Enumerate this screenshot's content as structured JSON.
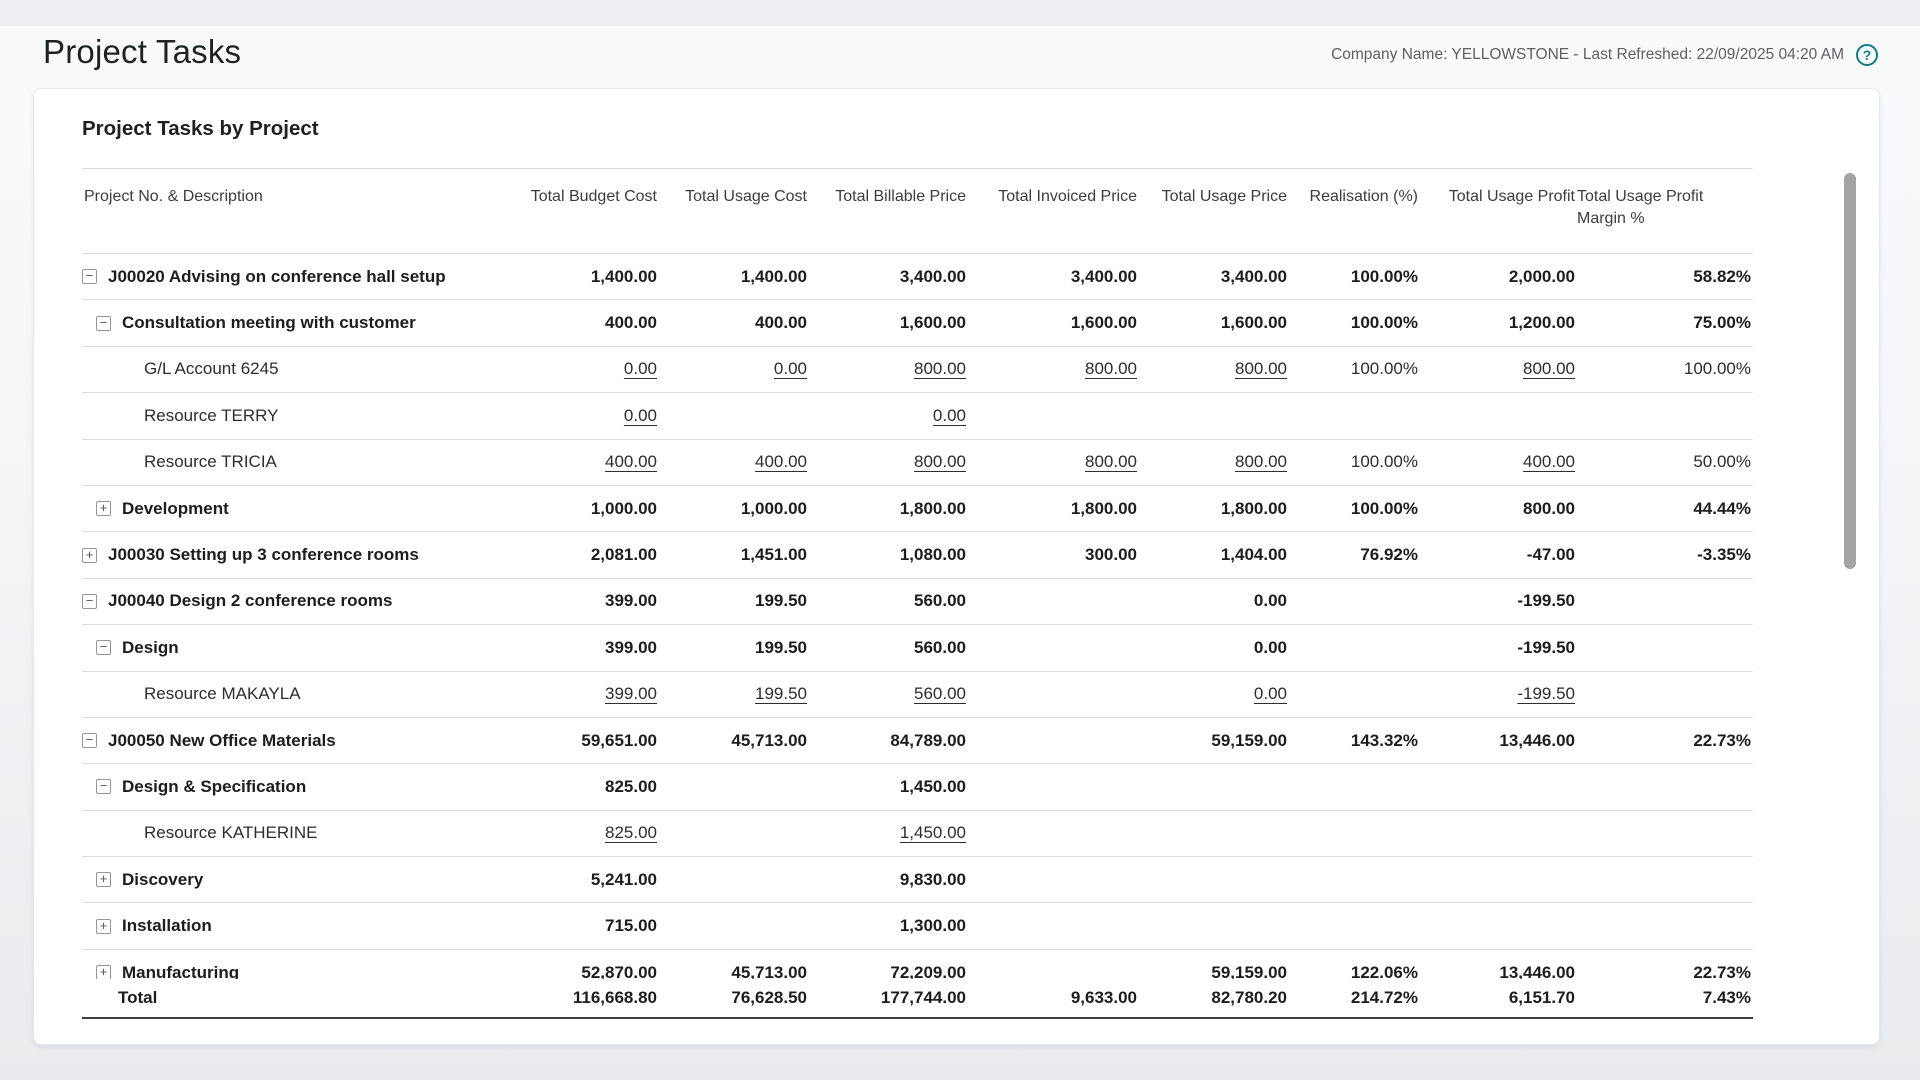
{
  "page": {
    "title": "Project Tasks",
    "meta": "Company Name: YELLOWSTONE - Last Refreshed: 22/09/2025 04:20 AM"
  },
  "icons": {
    "help": "?",
    "collapse": "−",
    "expand": "+"
  },
  "card": {
    "title": "Project Tasks by Project",
    "columns": [
      "Project No. & Description",
      "Total Budget Cost",
      "Total Usage Cost",
      "Total Billable Price",
      "Total Invoiced Price",
      "Total Usage Price",
      "Realisation (%)",
      "Total Usage Profit",
      "Total Usage Profit Margin %"
    ],
    "rows": [
      {
        "level": 0,
        "toggle": "collapse",
        "bold": true,
        "label": "J00020 Advising on conference hall setup",
        "values": [
          "1,400.00",
          "1,400.00",
          "3,400.00",
          "3,400.00",
          "3,400.00",
          "100.00%",
          "2,000.00",
          "58.82%"
        ]
      },
      {
        "level": 1,
        "toggle": "collapse",
        "bold": true,
        "label": "Consultation meeting with customer",
        "values": [
          "400.00",
          "400.00",
          "1,600.00",
          "1,600.00",
          "1,600.00",
          "100.00%",
          "1,200.00",
          "75.00%"
        ]
      },
      {
        "level": 2,
        "toggle": null,
        "bold": false,
        "label": "G/L Account 6245",
        "values": [
          "0.00",
          "0.00",
          "800.00",
          "800.00",
          "800.00",
          "100.00%",
          "800.00",
          "100.00%"
        ]
      },
      {
        "level": 2,
        "toggle": null,
        "bold": false,
        "label": "Resource TERRY",
        "values": [
          "0.00",
          "",
          "0.00",
          "",
          "",
          "",
          "",
          ""
        ]
      },
      {
        "level": 2,
        "toggle": null,
        "bold": false,
        "label": "Resource TRICIA",
        "values": [
          "400.00",
          "400.00",
          "800.00",
          "800.00",
          "800.00",
          "100.00%",
          "400.00",
          "50.00%"
        ]
      },
      {
        "level": 1,
        "toggle": "expand",
        "bold": true,
        "label": "Development",
        "values": [
          "1,000.00",
          "1,000.00",
          "1,800.00",
          "1,800.00",
          "1,800.00",
          "100.00%",
          "800.00",
          "44.44%"
        ]
      },
      {
        "level": 0,
        "toggle": "expand",
        "bold": true,
        "label": "J00030 Setting up 3 conference rooms",
        "values": [
          "2,081.00",
          "1,451.00",
          "1,080.00",
          "300.00",
          "1,404.00",
          "76.92%",
          "-47.00",
          "-3.35%"
        ]
      },
      {
        "level": 0,
        "toggle": "collapse",
        "bold": true,
        "label": "J00040 Design 2 conference rooms",
        "values": [
          "399.00",
          "199.50",
          "560.00",
          "",
          "0.00",
          "",
          "-199.50",
          ""
        ]
      },
      {
        "level": 1,
        "toggle": "collapse",
        "bold": true,
        "label": "Design",
        "values": [
          "399.00",
          "199.50",
          "560.00",
          "",
          "0.00",
          "",
          "-199.50",
          ""
        ]
      },
      {
        "level": 2,
        "toggle": null,
        "bold": false,
        "label": "Resource MAKAYLA",
        "values": [
          "399.00",
          "199.50",
          "560.00",
          "",
          "0.00",
          "",
          "-199.50",
          ""
        ]
      },
      {
        "level": 0,
        "toggle": "collapse",
        "bold": true,
        "label": "J00050 New Office Materials",
        "values": [
          "59,651.00",
          "45,713.00",
          "84,789.00",
          "",
          "59,159.00",
          "143.32%",
          "13,446.00",
          "22.73%"
        ]
      },
      {
        "level": 1,
        "toggle": "collapse",
        "bold": true,
        "label": "Design & Specification",
        "values": [
          "825.00",
          "",
          "1,450.00",
          "",
          "",
          "",
          "",
          ""
        ]
      },
      {
        "level": 2,
        "toggle": null,
        "bold": false,
        "label": "Resource KATHERINE",
        "values": [
          "825.00",
          "",
          "1,450.00",
          "",
          "",
          "",
          "",
          ""
        ]
      },
      {
        "level": 1,
        "toggle": "expand",
        "bold": true,
        "label": "Discovery",
        "values": [
          "5,241.00",
          "",
          "9,830.00",
          "",
          "",
          "",
          "",
          ""
        ]
      },
      {
        "level": 1,
        "toggle": "expand",
        "bold": true,
        "label": "Installation",
        "values": [
          "715.00",
          "",
          "1,300.00",
          "",
          "",
          "",
          "",
          ""
        ]
      },
      {
        "level": 1,
        "toggle": "expand",
        "bold": true,
        "label": "Manufacturing",
        "values": [
          "52,870.00",
          "45,713.00",
          "72,209.00",
          "",
          "59,159.00",
          "122.06%",
          "13,446.00",
          "22.73%"
        ]
      }
    ],
    "total": {
      "label": "Total",
      "values": [
        "116,668.80",
        "76,628.50",
        "177,744.00",
        "9,633.00",
        "82,780.20",
        "214.72%",
        "6,151.70",
        "7.43%"
      ]
    }
  }
}
